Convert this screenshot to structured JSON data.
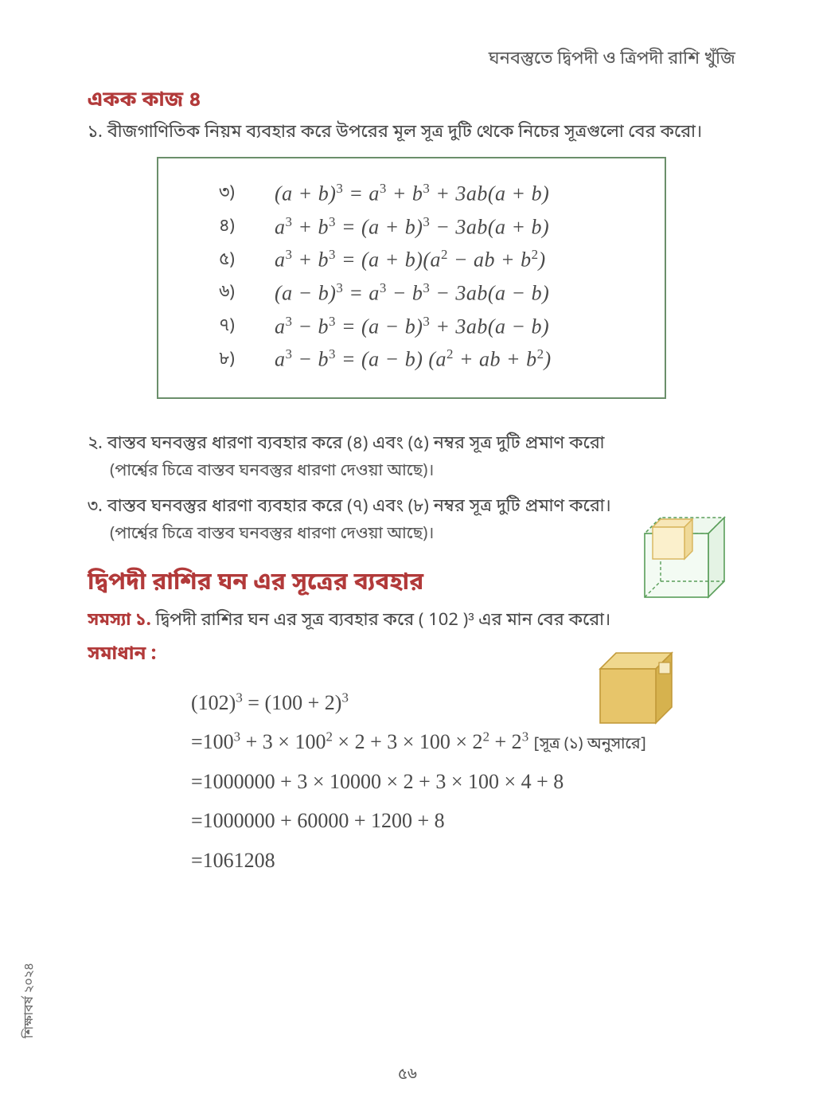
{
  "header": {
    "running_title": "ঘনবস্তুতে দ্বিপদী ও ত্রিপদী রাশি খুঁজি"
  },
  "unit": {
    "title": "একক কাজ ৪"
  },
  "intro": {
    "text": "১. বীজগাণিতিক নিয়ম ব্যবহার করে উপরের মূল সূত্র দুটি থেকে নিচের সূত্রগুলো বের করো।"
  },
  "formulas": {
    "rows": [
      {
        "label": "৩)",
        "expr": "(a + b)³ = a³ + b³ + 3ab(a + b)"
      },
      {
        "label": "৪)",
        "expr": "a³ + b³ = (a + b)³ − 3ab(a + b)"
      },
      {
        "label": "৫)",
        "expr": "a³ + b³ = (a + b)(a² − ab + b²)"
      },
      {
        "label": "৬)",
        "expr": "(a − b)³ = a³ − b³ − 3ab(a − b)"
      },
      {
        "label": "৭)",
        "expr": "a³ − b³ = (a − b)³ + 3ab(a − b)"
      },
      {
        "label": "৮)",
        "expr": "a³ − b³ = (a − b) (a² + ab + b²)"
      }
    ]
  },
  "questions": {
    "q2": "২.  বাস্তব ঘনবস্তুর ধারণা ব্যবহার করে (৪) এবং (৫) নম্বর সূত্র দুটি প্রমাণ করো",
    "q2_note": "(পার্শ্বের চিত্রে বাস্তব ঘনবস্তুর ধারণা দেওয়া আছে)।",
    "q3": "৩.  বাস্তব ঘনবস্তুর ধারণা ব্যবহার করে (৭) এবং (৮) নম্বর সূত্র দুটি প্রমাণ করো।",
    "q3_note": "(পার্শ্বের চিত্রে বাস্তব ঘনবস্তুর ধারণা দেওয়া আছে)।"
  },
  "section": {
    "head": "দ্বিপদী রাশির ঘন এর সূত্রের ব্যবহার"
  },
  "problem": {
    "tag": "সমস্যা ১.",
    "text": " দ্বিপদী রাশির ঘন  এর সূত্র ব্যবহার করে ( 102 )³ এর মান বের করো।"
  },
  "solution_head": "সমাধান :",
  "work": {
    "l1": "(102)³ = (100 + 2)³",
    "l2a": "=100³ + 3 × 100² × 2 + 3 × 100 × 2² + 2³ ",
    "l2b": "[সূত্র (১) অনুসারে]",
    "l3": "=1000000 + 3 × 10000 × 2 + 3 × 100 × 4 + 8",
    "l4": "=1000000 + 60000 + 1200 + 8",
    "l5": "=1061208"
  },
  "spine": "শিক্ষাবর্ষ ২০২৪",
  "pagenum": "৫৬",
  "colors": {
    "accent": "#b23a3a",
    "box_border": "#6b8f6b",
    "cube_outer_stroke": "#5a9e5a",
    "cube_outer_fill": "#eef8ee",
    "cube_inner_stroke": "#d8b45a",
    "cube_inner_fill": "#f7e7b8",
    "cube2_stroke": "#c29a3a",
    "cube2_fill_front": "#e7c56a",
    "cube2_fill_top": "#f0d88e",
    "cube2_fill_side": "#d6b24e"
  }
}
